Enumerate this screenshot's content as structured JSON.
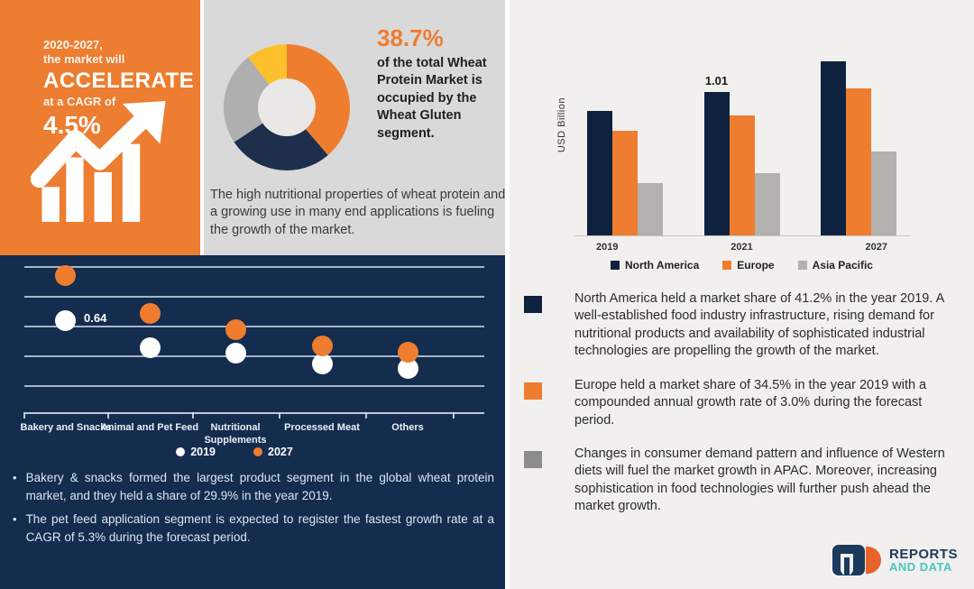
{
  "title_block": {
    "period": "2020-2027,",
    "line2": "the market will",
    "line3": "ACCELERATE",
    "line4": "at a CAGR of",
    "cagr": "4.5%"
  },
  "donut_section": {
    "headline_value": "38.7%",
    "headline_text": "of the total Wheat Protein Market is occupied by the Wheat Gluten segment.",
    "paragraph": "The high nutritional properties of wheat protein and a growing use in many end applications is fueling the growth of the market."
  },
  "chart_data": [
    {
      "type": "scatter",
      "description": "Wheat protein market by application segment, dot plot, values in USD Billion (estimated from gridlines; only 0.64 labeled)",
      "categories": [
        "Bakery and Snacks",
        "Animal and Pet Feed",
        "Nutritional Supplements",
        "Processed Meat",
        "Others"
      ],
      "series": [
        {
          "name": "2019",
          "color": "#FFFFFF",
          "values": [
            0.64,
            0.46,
            0.42,
            0.35,
            0.32
          ]
        },
        {
          "name": "2027",
          "color": "#EE7D2F",
          "values": [
            0.94,
            0.69,
            0.58,
            0.47,
            0.43
          ]
        }
      ],
      "annotations": [
        {
          "text": "0.64",
          "category": "Bakery and Snacks",
          "series": "2019"
        }
      ],
      "ylim": [
        0.1,
        1.1
      ],
      "grid": true,
      "legend_position": "bottom"
    },
    {
      "type": "bar",
      "description": "Regional market size, values in USD Billion (only 1.01 labeled; others estimated from bar heights)",
      "categories": [
        "2019",
        "2021",
        "2027"
      ],
      "series": [
        {
          "name": "North America",
          "color": "#0E2240",
          "values": [
            0.88,
            1.01,
            1.23
          ]
        },
        {
          "name": "Europe",
          "color": "#EE7D2F",
          "values": [
            0.74,
            0.85,
            1.04
          ]
        },
        {
          "name": "Asia Pacific",
          "color": "#B3B1AF",
          "values": [
            0.37,
            0.44,
            0.59
          ]
        }
      ],
      "data_labels": [
        {
          "text": "1.01",
          "category": "2021",
          "series": "North America"
        }
      ],
      "ylabel": "USD Billion",
      "xlabel": "",
      "ylim": [
        0,
        1.3
      ],
      "grid": false,
      "legend_position": "bottom"
    },
    {
      "type": "pie",
      "description": "Donut chart; only the Wheat Gluten share (38.7%) is labeled, other segment shares estimated from arc angles",
      "labels": [
        "Wheat Gluten",
        "",
        "",
        ""
      ],
      "values": [
        38.7,
        27.0,
        23.8,
        10.5
      ],
      "colors": [
        "#EE7D2F",
        "#1E2F4D",
        "#AFAFAF",
        "#FCC02C"
      ]
    }
  ],
  "navy_panel_bullets": [
    "Bakery & snacks formed the largest product segment in the global wheat protein market, and they held a share of 29.9% in the year 2019.",
    "The pet feed application segment is expected to register the fastest growth rate at a CAGR of 5.3% during the forecast period."
  ],
  "right_panel_bullets": [
    {
      "marker_color": "#0E2240",
      "text": "North America held a market share of 41.2% in the year 2019. A well-established food industry infrastructure, rising demand for nutritional products and availability of sophisticated industrial technologies are propelling the growth of the market."
    },
    {
      "marker_color": "#EE7D2F",
      "text": "Europe held a market share of 34.5% in the year 2019 with a compounded annual growth rate of 3.0% during the forecast period."
    },
    {
      "marker_color": "#8C8C8C",
      "text": "Changes in consumer demand pattern and influence of Western diets will fuel the market growth in APAC. Moreover, increasing sophistication in food technologies will further push ahead the market growth."
    }
  ],
  "logo": {
    "line1": "REPORTS",
    "line2": "AND DATA"
  },
  "colors": {
    "accent_orange": "#ED7D31",
    "navy": "#142C4E",
    "bar_navy": "#0E2240",
    "gray_panel": "#D9D9D9",
    "right_panel": "#F1F0EE",
    "logo_teal": "#49C5BE"
  }
}
